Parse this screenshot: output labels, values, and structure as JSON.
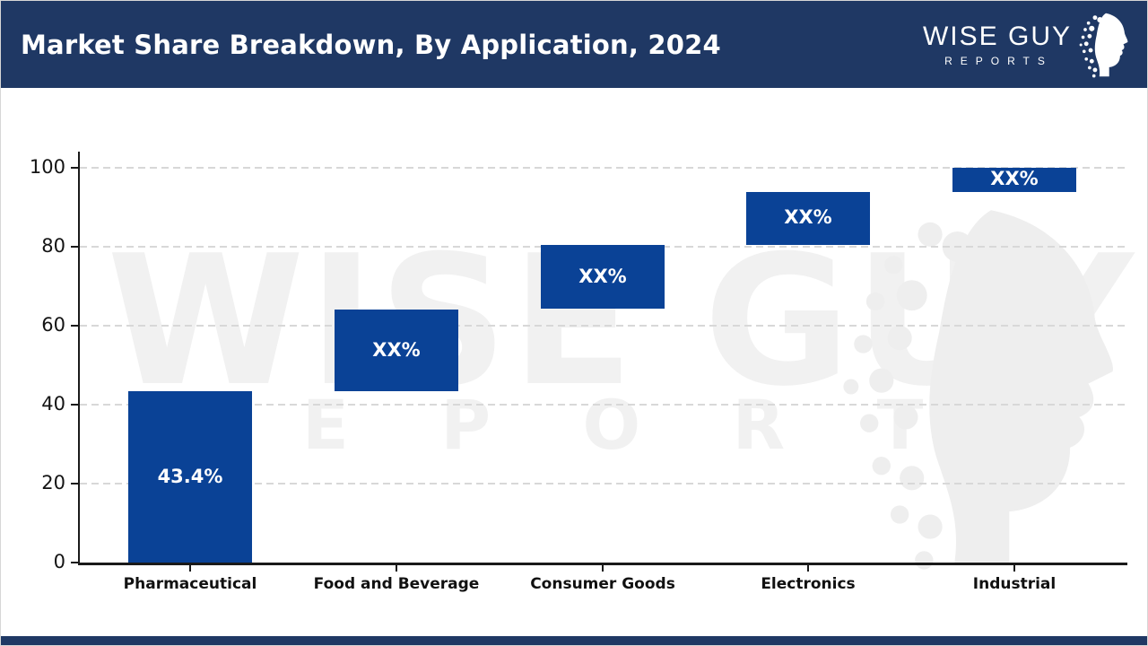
{
  "header": {
    "title": "Market Share Breakdown, By Application, 2024",
    "brand": {
      "name": "WISE GUY",
      "subtitle": "REPORTS"
    }
  },
  "watermark": {
    "line1": "WISE GUY",
    "line2": "R E P O R T S"
  },
  "chart_data": {
    "type": "bar",
    "subtype": "floating-waterfall",
    "title": "Market Share Breakdown, By Application, 2024",
    "categories": [
      "Pharmaceutical",
      "Food and Beverage",
      "Consumer Goods",
      "Electronics",
      "Industrial"
    ],
    "series": [
      {
        "name": "Market share (%)",
        "segments": [
          {
            "category": "Pharmaceutical",
            "start": 0,
            "end": 43.4,
            "label": "43.4%"
          },
          {
            "category": "Food and Beverage",
            "start": 43.4,
            "end": 64.1,
            "label": "XX%"
          },
          {
            "category": "Consumer Goods",
            "start": 64.3,
            "end": 80.4,
            "label": "XX%"
          },
          {
            "category": "Electronics",
            "start": 80.5,
            "end": 93.9,
            "label": "XX%"
          },
          {
            "category": "Industrial",
            "start": 93.9,
            "end": 100,
            "label": "XX%"
          }
        ]
      }
    ],
    "xlabel": "",
    "ylabel": "",
    "yticks": [
      0,
      20,
      40,
      60,
      80,
      100
    ],
    "ylim": [
      0,
      104
    ],
    "grid": "horizontal-dashed",
    "legend": "none",
    "bar_color": "#0a4296"
  },
  "colors": {
    "header_bg": "#1f3864",
    "footer_bg": "#1f3864",
    "bar": "#0a4296",
    "bar_label": "#ffffff",
    "grid_line": "#d8d8d8",
    "axis": "#1a1a1a",
    "tick_label": "#141414",
    "watermark": "#f1f1f1",
    "background": "#ffffff"
  }
}
